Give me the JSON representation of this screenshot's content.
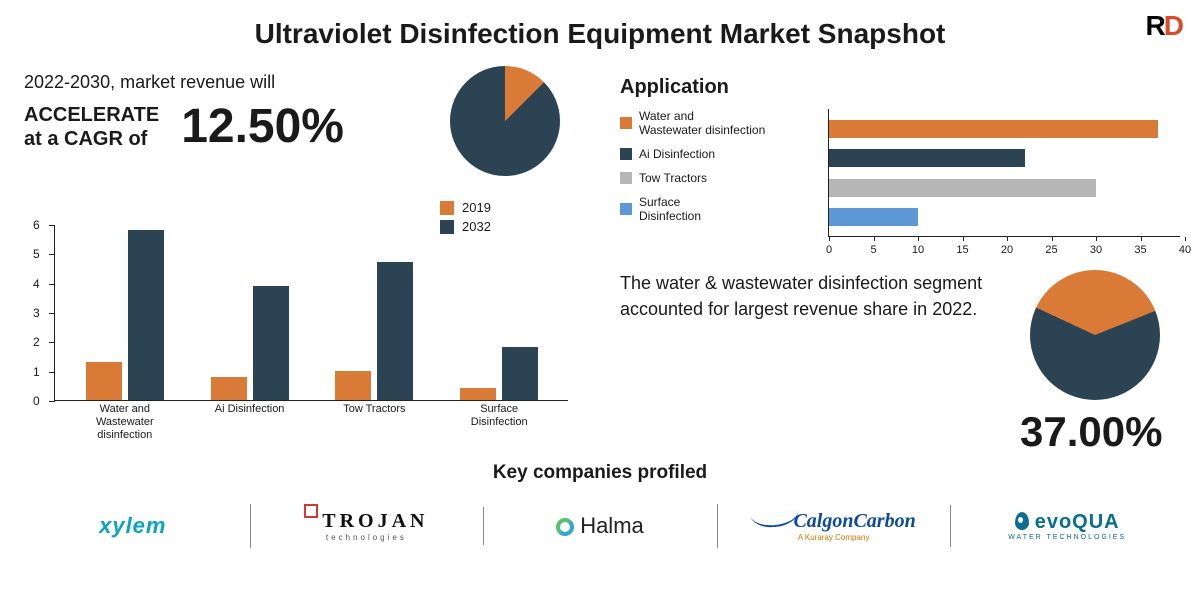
{
  "title": "Ultraviolet Disinfection Equipment Market Snapshot",
  "logo": {
    "r": "R",
    "d": "D"
  },
  "cagr": {
    "line1": "2022-2030, market revenue will",
    "accel_line_a": "ACCELERATE",
    "accel_line_b": "at a CAGR of",
    "value": "12.50%"
  },
  "pie1": {
    "slice_pct": 12.5,
    "slice_color": "#d97b36",
    "rest_color": "#2b4352",
    "rotation_deg": 0
  },
  "year_legend": {
    "a_label": "2019",
    "a_color": "#d97b36",
    "b_label": "2032",
    "b_color": "#2b4352"
  },
  "barchart": {
    "ymax": 6,
    "ytick_step": 1,
    "color_a": "#d97b36",
    "color_b": "#2b4352",
    "categories": [
      {
        "label_l1": "Water and",
        "label_l2": "Wastewater disinfection",
        "a": 1.3,
        "b": 5.8
      },
      {
        "label_l1": "Ai Disinfection",
        "label_l2": "",
        "a": 0.8,
        "b": 3.9
      },
      {
        "label_l1": "Tow Tractors",
        "label_l2": "",
        "a": 1.0,
        "b": 4.7
      },
      {
        "label_l1": "Surface",
        "label_l2": "Disinfection",
        "a": 0.4,
        "b": 1.8
      }
    ]
  },
  "application": {
    "title": "Application",
    "items": [
      {
        "label_l1": "Water and",
        "label_l2": "Wastewater disinfection",
        "color": "#d97b36",
        "value": 37
      },
      {
        "label_l1": "Ai Disinfection",
        "label_l2": "",
        "color": "#2b4352",
        "value": 22
      },
      {
        "label_l1": "Tow Tractors",
        "label_l2": "",
        "color": "#b6b6b6",
        "value": 30
      },
      {
        "label_l1": "Surface",
        "label_l2": "Disinfection",
        "color": "#5d98d4",
        "value": 10
      }
    ],
    "xmax": 40,
    "xtick_step": 5
  },
  "segment_text": "The water & wastewater disinfection segment accounted for largest revenue share in 2022.",
  "pie2": {
    "slice_pct": 37.0,
    "slice_color": "#d97b36",
    "rest_color": "#2b4352",
    "rotation_deg": -65
  },
  "segment_pct": "37.00%",
  "key_companies_title": "Key companies profiled",
  "companies": {
    "xylem": "xylem",
    "trojan": "TROJAN",
    "trojan_sub": "technologies",
    "halma": "Halma",
    "calgon": "CalgonCarbon",
    "calgon_sub": "A Kuraray Company",
    "evoqua": "evoQUA",
    "evoqua_sub": "WATER TECHNOLOGIES"
  }
}
